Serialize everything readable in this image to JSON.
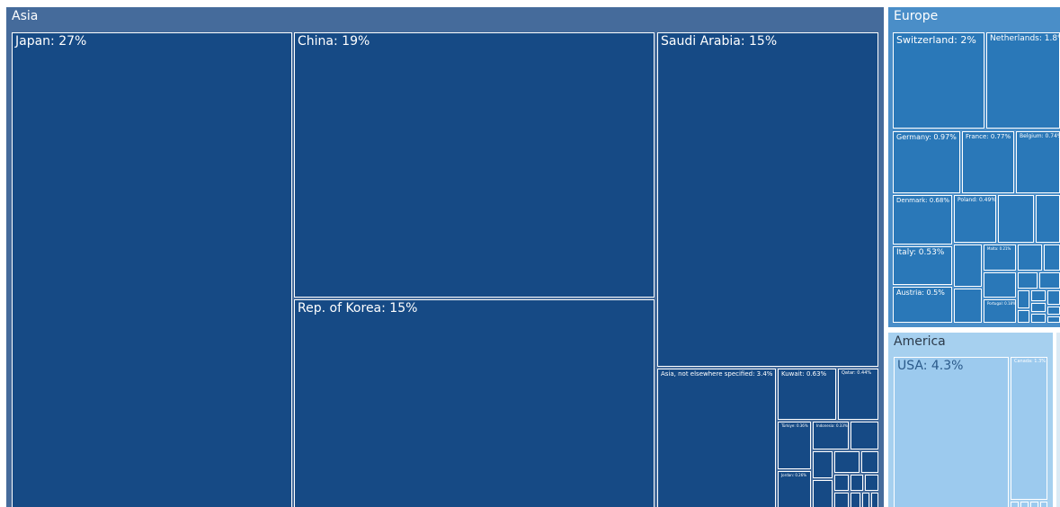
{
  "chart_data": {
    "type": "treemap",
    "unit": "%",
    "colors": {
      "Asia": {
        "header": "#456b9b",
        "tile": "#164a85"
      },
      "Europe": {
        "header": "#4a8ec8",
        "tile": "#2a78b8"
      },
      "America": {
        "header": "#a6d0ef",
        "tile": "#9ccaee"
      }
    },
    "regions": [
      {
        "name": "Asia",
        "countries": [
          {
            "name": "Japan",
            "value": 27,
            "label": "Japan: 27%"
          },
          {
            "name": "China",
            "value": 19,
            "label": "China: 19%"
          },
          {
            "name": "Saudi Arabia",
            "value": 15,
            "label": "Saudi Arabia: 15%"
          },
          {
            "name": "Rep. of Korea",
            "value": 15,
            "label": "Rep. of Korea: 15%"
          },
          {
            "name": "Asia, not elsewhere specified",
            "value": 3.4,
            "label": "Asia, not elsewhere specified: 3.4%"
          },
          {
            "name": "Kuwait",
            "value": 0.63,
            "label": "Kuwait: 0.63%"
          },
          {
            "name": "Qatar",
            "value": 0.44,
            "label": "Qatar: 0.44%"
          },
          {
            "name": "Türkiye",
            "value": 0.36,
            "label": "Türkiye: 0.36%"
          },
          {
            "name": "Indonesia",
            "value": 0.33,
            "label": "Indonesia: 0.33%"
          },
          {
            "name": "Jordan",
            "value": 0.26,
            "label": "Jordan: 0.26%"
          }
        ]
      },
      {
        "name": "Europe",
        "countries": [
          {
            "name": "Switzerland",
            "value": 2,
            "label": "Switzerland: 2%"
          },
          {
            "name": "Netherlands",
            "value": 1.8,
            "label": "Netherlands: 1.8%"
          },
          {
            "name": "Germany",
            "value": 0.97,
            "label": "Germany: 0.97%"
          },
          {
            "name": "France",
            "value": 0.77,
            "label": "France: 0.77%"
          },
          {
            "name": "Belgium",
            "value": 0.74,
            "label": "Belgium: 0.74%"
          },
          {
            "name": "Denmark",
            "value": 0.68,
            "label": "Denmark: 0.68%"
          },
          {
            "name": "Poland",
            "value": 0.49,
            "label": "Poland: 0.49%"
          },
          {
            "name": "Italy",
            "value": 0.53,
            "label": "Italy: 0.53%"
          },
          {
            "name": "Malta",
            "value": 0.21,
            "label": "Malta: 0.21%"
          },
          {
            "name": "Austria",
            "value": 0.5,
            "label": "Austria: 0.5%"
          },
          {
            "name": "Portugal",
            "value": 0.18,
            "label": "Portugal: 0.18%"
          }
        ]
      },
      {
        "name": "America",
        "countries": [
          {
            "name": "USA",
            "value": 4.3,
            "label": "USA: 4.3%"
          },
          {
            "name": "Canada",
            "value": 1.3,
            "label": "Canada: 1.3%"
          }
        ]
      }
    ]
  }
}
